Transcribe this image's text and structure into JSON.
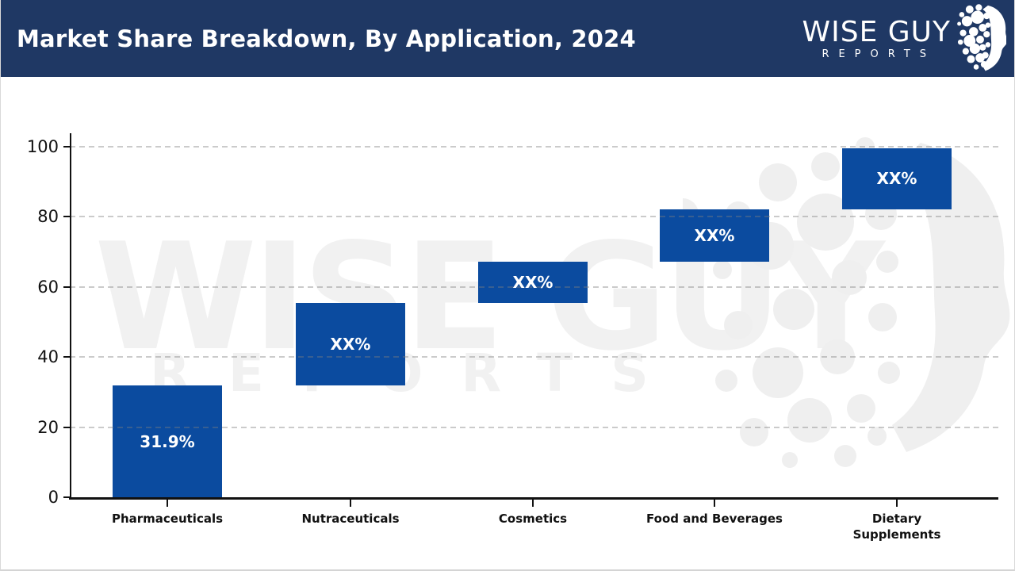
{
  "header": {
    "title": "Market Share Breakdown, By Application, 2024",
    "logo": {
      "line1": "WISE GUY",
      "line2": "REPORTS"
    }
  },
  "watermark": {
    "line1": "WISE GUY",
    "line2": "REPORTS"
  },
  "colors": {
    "header_bg": "#1f3864",
    "bar": "#0b4b9f",
    "axis": "#111111",
    "grid": "#9a9a9a",
    "watermark": "#f1f1f1",
    "bar_label": "#ffffff"
  },
  "chart_data": {
    "type": "bar",
    "subtype": "waterfall",
    "title": "Market Share Breakdown, By Application, 2024",
    "categories": [
      "Pharmaceuticals",
      "Nutraceuticals",
      "Cosmetics",
      "Food and Beverages",
      "Dietary\nSupplements"
    ],
    "segments": [
      {
        "category": "Pharmaceuticals",
        "start": 0,
        "end": 31.9,
        "label": "31.9%"
      },
      {
        "category": "Nutraceuticals",
        "start": 31.9,
        "end": 55.5,
        "label": "XX%"
      },
      {
        "category": "Cosmetics",
        "start": 55.5,
        "end": 67.1,
        "label": "XX%"
      },
      {
        "category": "Food and Beverages",
        "start": 67.1,
        "end": 82.2,
        "label": "XX%"
      },
      {
        "category": "Dietary Supplements",
        "start": 82.2,
        "end": 99.5,
        "label": "XX%"
      }
    ],
    "ylim": [
      0,
      100
    ],
    "yticks": [
      0,
      20,
      40,
      60,
      80,
      100
    ],
    "xlabel": "",
    "ylabel": "",
    "grid": "horizontal-dashed-over-bars",
    "legend": "none"
  }
}
